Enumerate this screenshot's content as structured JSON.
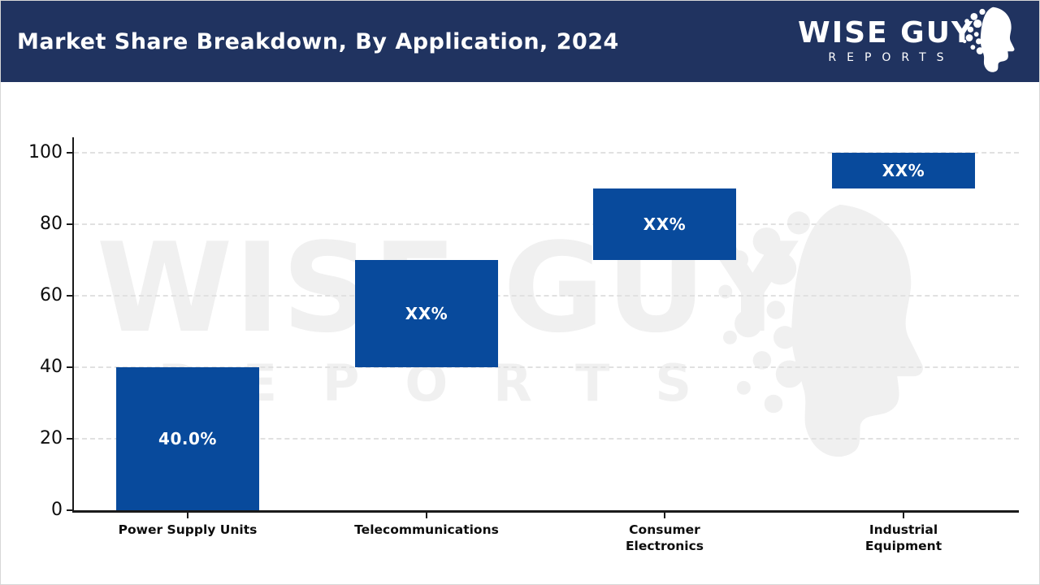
{
  "header": {
    "title": "Market Share Breakdown, By Application, 2024",
    "logo": {
      "line1": "WISE GUY",
      "line2": "REPORTS"
    }
  },
  "watermark": {
    "line1": "WISE GUY",
    "line2": "REPORTS"
  },
  "colors": {
    "header_bg": "#203360",
    "bar": "#084a9c",
    "bar_label": "#ffffff",
    "gridline": "#e1e1e1",
    "axis": "#1a1a1a",
    "watermark": "#f0f0f0"
  },
  "chart_data": {
    "type": "bar",
    "subtype": "floating-segment (waterfall-style market share)",
    "title": "Market Share Breakdown, By Application, 2024",
    "categories": [
      "Power Supply Units",
      "Telecommunications",
      "Consumer\nElectronics",
      "Industrial\nEquipment"
    ],
    "bars": [
      {
        "category": "Power Supply Units",
        "start": 0,
        "end": 40,
        "label": "40.0%"
      },
      {
        "category": "Telecommunications",
        "start": 40,
        "end": 70,
        "label": "XX%"
      },
      {
        "category": "Consumer Electronics",
        "start": 70,
        "end": 90,
        "label": "XX%"
      },
      {
        "category": "Industrial Equipment",
        "start": 90,
        "end": 100,
        "label": "XX%"
      }
    ],
    "xlabel": "",
    "ylabel": "",
    "ylim": [
      0,
      104
    ],
    "yticks": [
      0,
      20,
      40,
      60,
      80,
      100
    ],
    "grid": "horizontal dashed",
    "legend": "none"
  }
}
